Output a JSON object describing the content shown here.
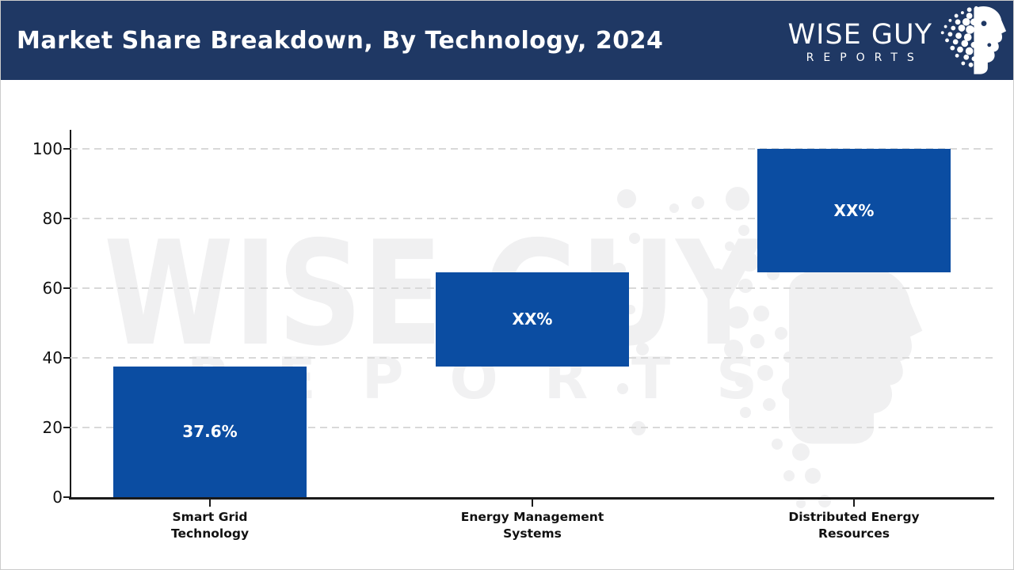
{
  "header": {
    "title": "Market Share Breakdown, By Technology, 2024",
    "logo": {
      "name_line": "WISE GUY",
      "sub_line": "REPORTS"
    },
    "colors": {
      "background": "#1F3864",
      "text": "#FFFFFF"
    }
  },
  "watermark": {
    "line1": "WISE GUY",
    "line2": "REPORTS"
  },
  "chart_data": {
    "type": "bar",
    "subtype": "waterfall",
    "title": "Market Share Breakdown, By Technology, 2024",
    "unit": "%",
    "categories": [
      "Smart Grid Technology",
      "Energy Management Systems",
      "Distributed Energy Resources"
    ],
    "category_label_lines": [
      [
        "Smart Grid",
        "Technology"
      ],
      [
        "Energy Management",
        "Systems"
      ],
      [
        "Distributed Energy",
        "Resources"
      ]
    ],
    "bars": [
      {
        "start": 0,
        "end": 37.6,
        "label": "37.6%"
      },
      {
        "start": 37.6,
        "end": 64.5,
        "label": "XX%"
      },
      {
        "start": 64.5,
        "end": 100,
        "label": "XX%"
      }
    ],
    "yticks": [
      0,
      20,
      40,
      60,
      80,
      100
    ],
    "ylim": [
      0,
      105
    ],
    "grid": true,
    "legend": false,
    "bar_color": "#0B4DA2",
    "bar_label_color": "#FFFFFF",
    "gridline_color": "#D9D9D9",
    "axis_color": "#1A1A1A",
    "tick_label_color": "#111111"
  }
}
